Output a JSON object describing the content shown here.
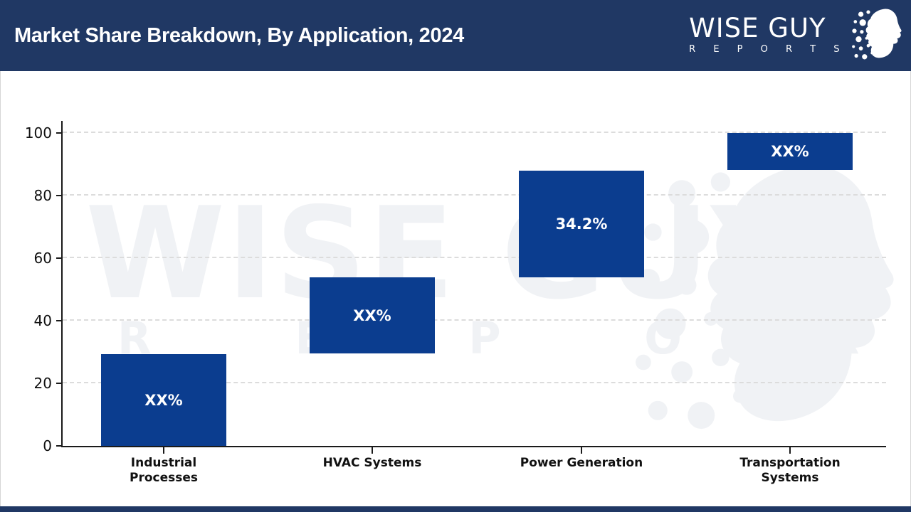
{
  "header": {
    "title": "Market Share Breakdown, By Application, 2024",
    "brand": {
      "line1": "WISE GUY",
      "line2": "R E P O R T S"
    }
  },
  "watermark": {
    "line1": "WISE GUY",
    "line2": "R E P O R T S"
  },
  "chart_data": {
    "type": "bar",
    "subtype": "floating-waterfall",
    "title": "Market Share Breakdown, By Application, 2024",
    "categories": [
      "Industrial Processes",
      "HVAC Systems",
      "Power Generation",
      "Transportation Systems"
    ],
    "tick_lines": [
      [
        "Industrial",
        "Processes"
      ],
      [
        "HVAC Systems"
      ],
      [
        "Power Generation"
      ],
      [
        "Transportation",
        "Systems"
      ]
    ],
    "segments": [
      {
        "category": "Industrial Processes",
        "start": 0,
        "end": 29.3,
        "label": "XX%"
      },
      {
        "category": "HVAC Systems",
        "start": 29.5,
        "end": 53.9,
        "label": "XX%"
      },
      {
        "category": "Power Generation",
        "start": 53.8,
        "end": 88.0,
        "label": "34.2%"
      },
      {
        "category": "Transportation Systems",
        "start": 88.2,
        "end": 100,
        "label": "XX%"
      }
    ],
    "yticks": [
      0,
      20,
      40,
      60,
      80,
      100
    ],
    "ylim": [
      0,
      104
    ],
    "xlabel": "",
    "ylabel": "",
    "grid": "horizontal-dashed",
    "legend": "none",
    "bar_color": "#0b3d8f",
    "bar_label_color": "#ffffff"
  },
  "colors": {
    "header_bg": "#203864",
    "footer_bg": "#203864",
    "bar": "#0b3d8f",
    "watermark": "#f0f2f5",
    "gridline": "#dcdcdc",
    "axis": "#1a1a1a",
    "frame_border": "#d6d6d6",
    "title_text": "#ffffff"
  }
}
